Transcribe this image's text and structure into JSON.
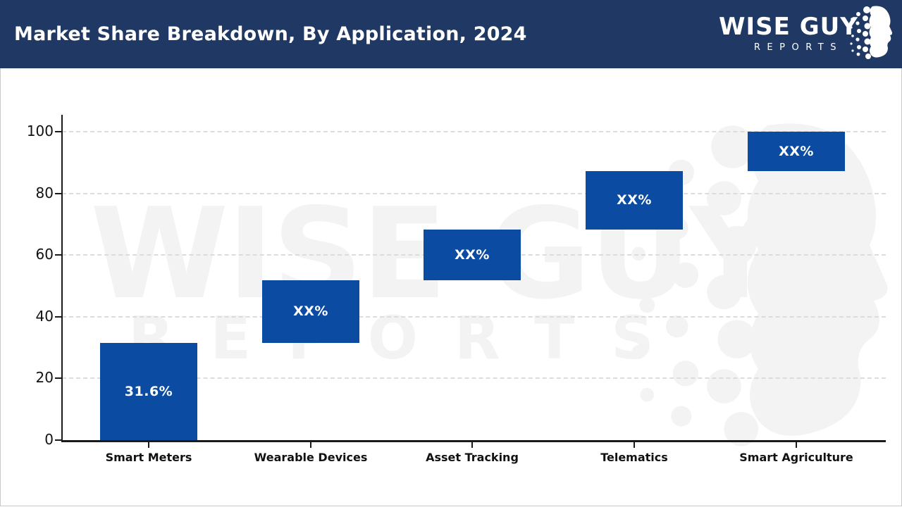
{
  "header": {
    "title": "Market Share Breakdown, By Application, 2024",
    "logo": {
      "line1": "WISE GUY",
      "line2": "REPORTS"
    }
  },
  "watermark": {
    "line1": "WISE GUY",
    "line2": "REPORTS"
  },
  "chart_data": {
    "type": "bar",
    "variant": "waterfall",
    "title": "Market Share Breakdown, By Application, 2024",
    "categories": [
      "Smart Meters",
      "Wearable Devices",
      "Asset Tracking",
      "Telematics",
      "Smart Agriculture"
    ],
    "segments": [
      {
        "category": "Smart Meters",
        "start": 0,
        "end": 31.6,
        "label": "31.6%"
      },
      {
        "category": "Wearable Devices",
        "start": 31.6,
        "end": 51.8,
        "label": "XX%"
      },
      {
        "category": "Asset Tracking",
        "start": 51.8,
        "end": 68.3,
        "label": "XX%"
      },
      {
        "category": "Telematics",
        "start": 68.3,
        "end": 87.3,
        "label": "XX%"
      },
      {
        "category": "Smart Agriculture",
        "start": 87.3,
        "end": 100,
        "label": "XX%"
      }
    ],
    "xlabel": "",
    "ylabel": "",
    "yticks": [
      0,
      20,
      40,
      60,
      80,
      100
    ],
    "ylim": [
      0,
      105.5
    ],
    "grid": "horizontal-dashed",
    "legend": "none",
    "bar_color": "#0b4ba1",
    "bar_label_color": "#ffffff",
    "header_color": "#1f3864",
    "watermark_color": "#f3f3f3",
    "gridline_color": "#dcdcdc"
  }
}
